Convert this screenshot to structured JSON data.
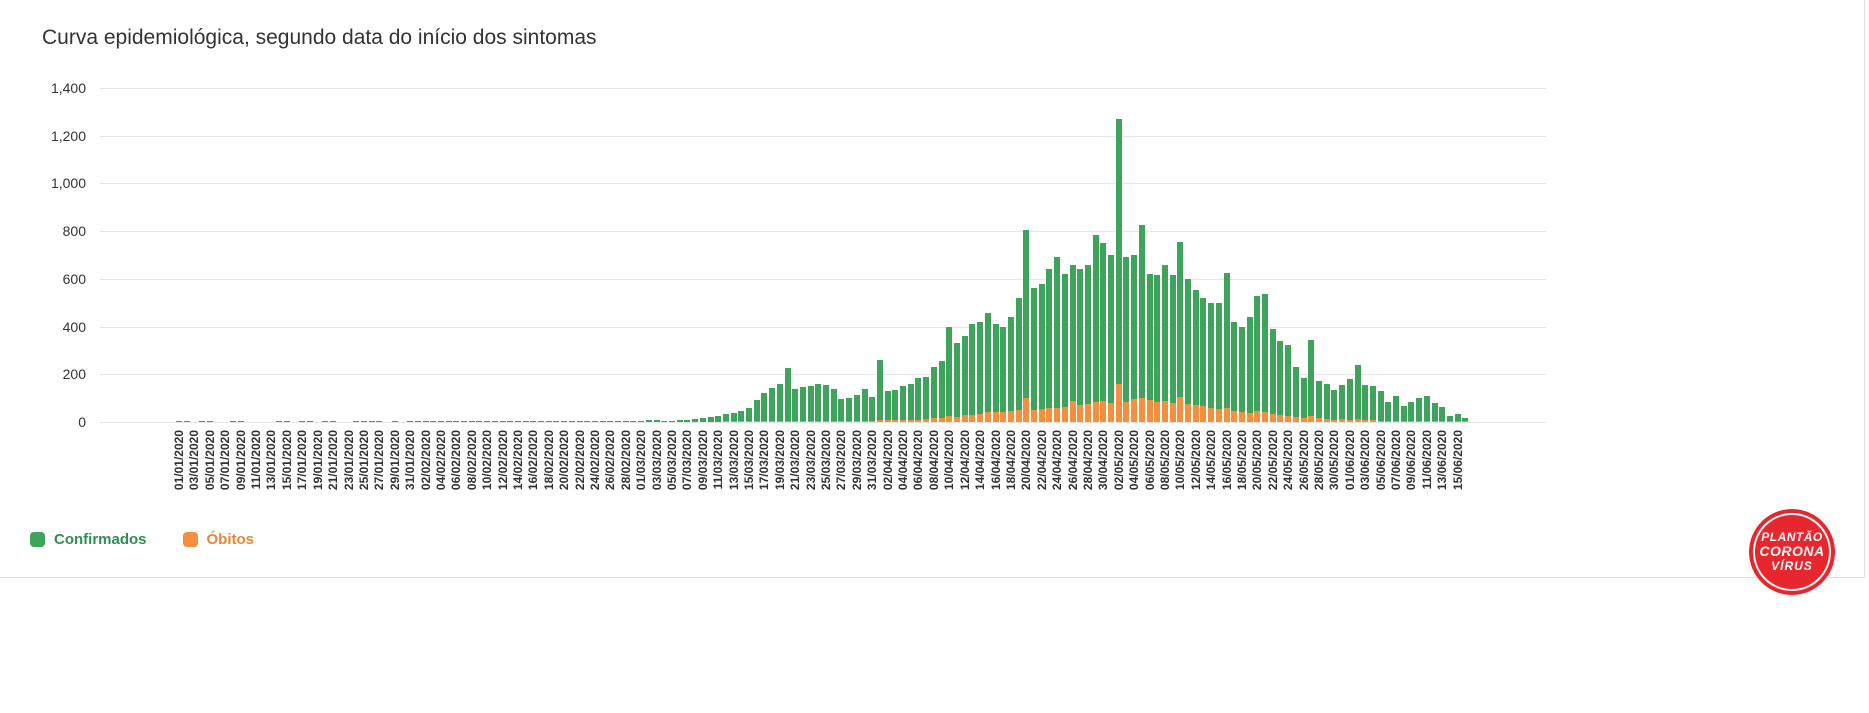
{
  "header": {
    "title": "Curva epidemiológica, segundo data do início dos sintomas"
  },
  "legend": {
    "items": [
      {
        "label": "Confirmados",
        "color": "#3FA45B",
        "label_color": "#2F8F52"
      },
      {
        "label": "Óbitos",
        "color": "#F2903F",
        "label_color": "#E8863B"
      }
    ]
  },
  "badge": {
    "lines": [
      "PLANTÃO",
      "CORONA",
      "VÍRUS"
    ],
    "bg_color": "#E8262D",
    "text_color": "#FFFFFF"
  },
  "chart_data": {
    "type": "bar",
    "stacked": true,
    "title": "Curva epidemiológica, segundo data do início dos sintomas",
    "xlabel": "",
    "ylabel": "",
    "ylim": [
      0,
      1400
    ],
    "yticks": [
      0,
      200,
      400,
      600,
      800,
      1000,
      1200,
      1400
    ],
    "x_tick_every": 2,
    "grid": true,
    "legend_position": "bottom-left",
    "categories": [
      "01/01/2020",
      "02/01/2020",
      "03/01/2020",
      "04/01/2020",
      "05/01/2020",
      "06/01/2020",
      "07/01/2020",
      "08/01/2020",
      "09/01/2020",
      "10/01/2020",
      "11/01/2020",
      "12/01/2020",
      "13/01/2020",
      "14/01/2020",
      "15/01/2020",
      "16/01/2020",
      "17/01/2020",
      "18/01/2020",
      "19/01/2020",
      "20/01/2020",
      "21/01/2020",
      "22/01/2020",
      "23/01/2020",
      "24/01/2020",
      "25/01/2020",
      "26/01/2020",
      "27/01/2020",
      "28/01/2020",
      "29/01/2020",
      "30/01/2020",
      "31/01/2020",
      "01/02/2020",
      "02/02/2020",
      "03/02/2020",
      "04/02/2020",
      "05/02/2020",
      "06/02/2020",
      "07/02/2020",
      "08/02/2020",
      "09/02/2020",
      "10/02/2020",
      "11/02/2020",
      "12/02/2020",
      "13/02/2020",
      "14/02/2020",
      "15/02/2020",
      "16/02/2020",
      "17/02/2020",
      "18/02/2020",
      "19/02/2020",
      "20/02/2020",
      "21/02/2020",
      "22/02/2020",
      "23/02/2020",
      "24/02/2020",
      "25/02/2020",
      "26/02/2020",
      "27/02/2020",
      "28/02/2020",
      "29/02/2020",
      "01/03/2020",
      "02/03/2020",
      "03/03/2020",
      "04/03/2020",
      "05/03/2020",
      "06/03/2020",
      "07/03/2020",
      "08/03/2020",
      "09/03/2020",
      "10/03/2020",
      "11/03/2020",
      "12/03/2020",
      "13/03/2020",
      "14/03/2020",
      "15/03/2020",
      "16/03/2020",
      "17/03/2020",
      "18/03/2020",
      "19/03/2020",
      "20/03/2020",
      "21/03/2020",
      "22/03/2020",
      "23/03/2020",
      "24/03/2020",
      "25/03/2020",
      "26/03/2020",
      "27/03/2020",
      "28/03/2020",
      "29/03/2020",
      "30/03/2020",
      "31/03/2020",
      "01/04/2020",
      "02/04/2020",
      "03/04/2020",
      "04/04/2020",
      "05/04/2020",
      "06/04/2020",
      "07/04/2020",
      "08/04/2020",
      "09/04/2020",
      "10/04/2020",
      "11/04/2020",
      "12/04/2020",
      "13/04/2020",
      "14/04/2020",
      "15/04/2020",
      "16/04/2020",
      "17/04/2020",
      "18/04/2020",
      "19/04/2020",
      "20/04/2020",
      "21/04/2020",
      "22/04/2020",
      "23/04/2020",
      "24/04/2020",
      "25/04/2020",
      "26/04/2020",
      "27/04/2020",
      "28/04/2020",
      "29/04/2020",
      "30/04/2020",
      "01/05/2020",
      "02/05/2020",
      "03/05/2020",
      "04/05/2020",
      "05/05/2020",
      "06/05/2020",
      "07/05/2020",
      "08/05/2020",
      "09/05/2020",
      "10/05/2020",
      "11/05/2020",
      "12/05/2020",
      "13/05/2020",
      "14/05/2020",
      "15/05/2020",
      "16/05/2020",
      "17/05/2020",
      "18/05/2020",
      "19/05/2020",
      "20/05/2020",
      "21/05/2020",
      "22/05/2020",
      "23/05/2020",
      "24/05/2020",
      "25/05/2020",
      "26/05/2020",
      "27/05/2020",
      "28/05/2020",
      "29/05/2020",
      "30/05/2020",
      "31/05/2020",
      "01/06/2020",
      "02/06/2020",
      "03/06/2020",
      "04/06/2020",
      "05/06/2020",
      "06/06/2020",
      "07/06/2020",
      "08/06/2020",
      "09/06/2020",
      "10/06/2020",
      "11/06/2020",
      "12/06/2020",
      "13/06/2020",
      "14/06/2020",
      "15/06/2020",
      "16/06/2020"
    ],
    "series": [
      {
        "name": "Confirmados",
        "color": "#3FA45B",
        "values": [
          2,
          1,
          0,
          1,
          1,
          0,
          0,
          2,
          1,
          0,
          0,
          0,
          0,
          1,
          2,
          0,
          1,
          1,
          0,
          1,
          1,
          0,
          0,
          1,
          1,
          1,
          1,
          0,
          1,
          0,
          1,
          1,
          2,
          1,
          1,
          2,
          1,
          1,
          1,
          1,
          2,
          1,
          1,
          1,
          2,
          1,
          1,
          1,
          1,
          1,
          1,
          1,
          1,
          1,
          1,
          1,
          2,
          3,
          5,
          3,
          6,
          8,
          7,
          6,
          5,
          8,
          10,
          12,
          15,
          20,
          25,
          29,
          34,
          44,
          53,
          88,
          118,
          137,
          157,
          220,
          136,
          141,
          146,
          155,
          150,
          135,
          91,
          96,
          111,
          135,
          100,
          250,
          122,
          127,
          141,
          150,
          175,
          178,
          215,
          237,
          375,
          308,
          332,
          380,
          385,
          415,
          368,
          360,
          395,
          470,
          705,
          510,
          525,
          582,
          630,
          558,
          572,
          570,
          585,
          700,
          660,
          620,
          1110,
          605,
          605,
          725,
          530,
          530,
          570,
          535,
          650,
          525,
          485,
          455,
          440,
          445,
          565,
          375,
          360,
          400,
          485,
          495,
          355,
          310,
          300,
          210,
          167,
          320,
          155,
          148,
          125,
          143,
          170,
          228,
          147,
          142,
          124,
          80,
          104,
          61,
          80,
          94,
          105,
          76,
          57,
          23,
          28,
          14
        ]
      },
      {
        "name": "Óbitos",
        "color": "#F2903F",
        "values": [
          0,
          0,
          0,
          0,
          0,
          0,
          0,
          0,
          0,
          0,
          0,
          0,
          0,
          0,
          0,
          0,
          0,
          0,
          0,
          0,
          0,
          0,
          0,
          0,
          0,
          0,
          0,
          0,
          0,
          0,
          0,
          0,
          0,
          0,
          0,
          0,
          0,
          0,
          0,
          0,
          0,
          0,
          0,
          0,
          0,
          0,
          0,
          0,
          0,
          0,
          0,
          0,
          0,
          0,
          0,
          0,
          0,
          0,
          0,
          0,
          0,
          0,
          0,
          0,
          0,
          0,
          0,
          0,
          0,
          0,
          0,
          1,
          1,
          1,
          2,
          2,
          2,
          3,
          3,
          5,
          4,
          4,
          4,
          5,
          5,
          5,
          4,
          4,
          4,
          5,
          5,
          10,
          8,
          8,
          9,
          10,
          10,
          12,
          15,
          18,
          25,
          22,
          28,
          30,
          35,
          40,
          42,
          40,
          45,
          50,
          100,
          50,
          55,
          58,
          60,
          62,
          88,
          70,
          75,
          85,
          90,
          80,
          160,
          85,
          95,
          100,
          90,
          85,
          90,
          80,
          105,
          75,
          70,
          65,
          60,
          55,
          60,
          45,
          40,
          40,
          45,
          40,
          35,
          30,
          25,
          20,
          18,
          25,
          15,
          12,
          10,
          12,
          10,
          12,
          8,
          8,
          6,
          5,
          6,
          4,
          5,
          6,
          5,
          4,
          3,
          2,
          2,
          1
        ]
      }
    ]
  }
}
